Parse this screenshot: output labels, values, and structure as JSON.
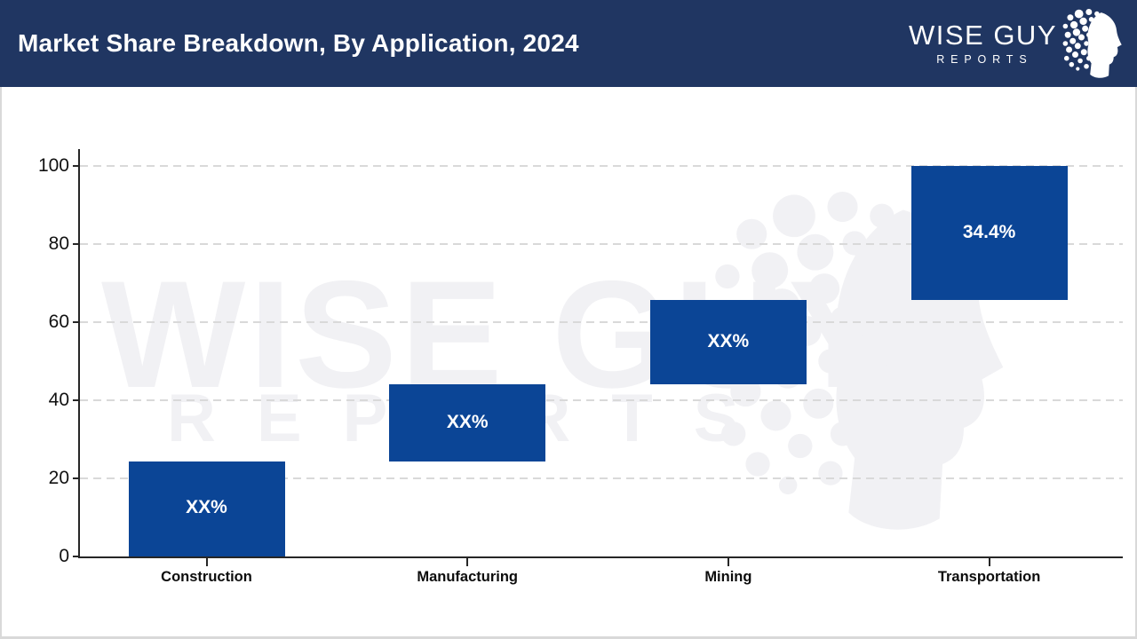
{
  "header": {
    "title": "Market Share Breakdown, By Application, 2024",
    "logo": {
      "line1": "WISE GUY",
      "line2": "REPORTS"
    },
    "bg_color": "#203662"
  },
  "watermark": {
    "line1": "WISE GUY",
    "line2": "REPORTS",
    "color": "#f1f1f4"
  },
  "chart_data": {
    "type": "bar",
    "subtype": "floating-waterfall",
    "title": "Market Share Breakdown, By Application, 2024",
    "categories": [
      "Construction",
      "Manufacturing",
      "Mining",
      "Transportation"
    ],
    "series": [
      {
        "name": "Market Share (%)",
        "segments": [
          [
            0,
            24.4
          ],
          [
            24.4,
            44.0
          ],
          [
            44.0,
            65.6
          ],
          [
            65.6,
            100.0
          ]
        ]
      }
    ],
    "bar_labels": [
      "XX%",
      "XX%",
      "XX%",
      "34.4%"
    ],
    "xlabel": "",
    "ylabel": "",
    "y_ticks": [
      0,
      20,
      40,
      60,
      80,
      100
    ],
    "ylim": [
      0,
      105
    ],
    "grid": "horizontal-dashed",
    "legend": "none",
    "bar_color": "#0b4596",
    "axis_color": "#262626",
    "grid_color": "#d9d9d9"
  }
}
